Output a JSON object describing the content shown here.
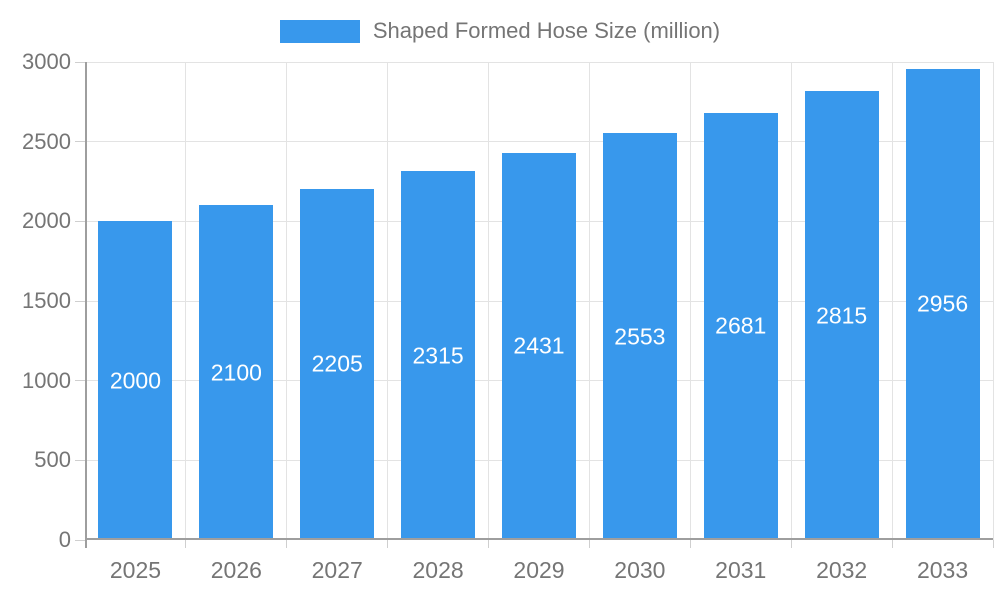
{
  "chart_data": {
    "type": "bar",
    "title": "Shaped Formed Hose Size (million)",
    "legend_label": "Shaped Formed Hose Size (million)",
    "legend_position": "top",
    "categories": [
      "2025",
      "2026",
      "2027",
      "2028",
      "2029",
      "2030",
      "2031",
      "2032",
      "2033"
    ],
    "series": [
      {
        "name": "Shaped Formed Hose Size (million)",
        "values": [
          2000,
          2100,
          2205,
          2315,
          2431,
          2553,
          2681,
          2815,
          2956
        ]
      }
    ],
    "bar_labels": [
      "2000",
      "2100",
      "2205",
      "2315",
      "2431",
      "2553",
      "2681",
      "2815",
      "2956"
    ],
    "xlabel": "",
    "ylabel": "",
    "ylim": [
      0,
      3000
    ],
    "yticks": [
      0,
      500,
      1000,
      1500,
      2000,
      2500,
      3000
    ],
    "grid": true,
    "colors": {
      "bar": "#3898EC",
      "bar_label": "#ffffff",
      "axis_text": "#757575",
      "legend_text": "#757575",
      "gridline": "#e3e3e3",
      "tick": "#cfcfcf",
      "axis_line": "#9e9e9e",
      "background": "#ffffff"
    }
  }
}
